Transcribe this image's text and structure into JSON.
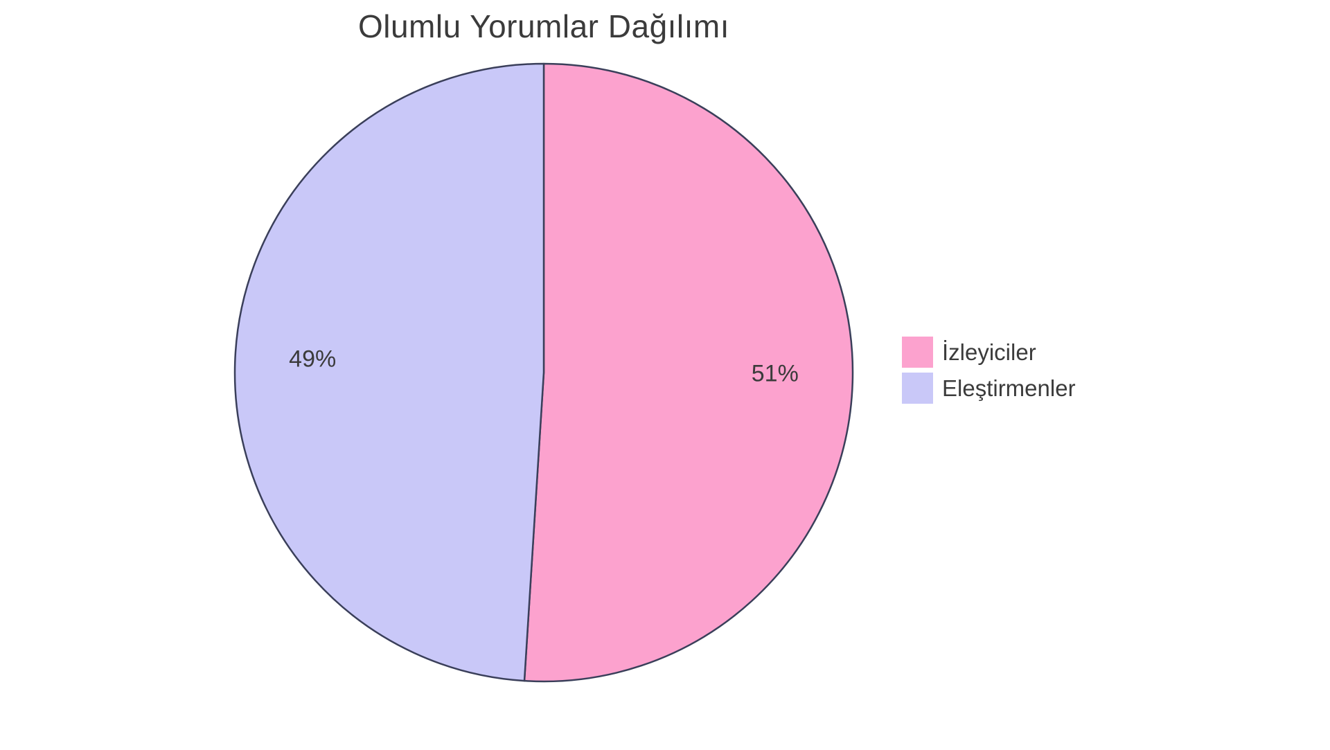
{
  "chart_data": {
    "type": "pie",
    "title": "Olumlu Yorumlar Dağılımı",
    "labels": [
      "İzleyiciler",
      "Eleştirmenler"
    ],
    "values": [
      51,
      49
    ],
    "percent_labels": [
      "51%",
      "49%"
    ],
    "colors": [
      "#FCA2CE",
      "#C9C8F8"
    ],
    "border_color": "#3A3F5A",
    "text_color": "#3b3b3b",
    "start_angle_deg": 0,
    "direction": "clockwise",
    "legend_position": "right"
  }
}
